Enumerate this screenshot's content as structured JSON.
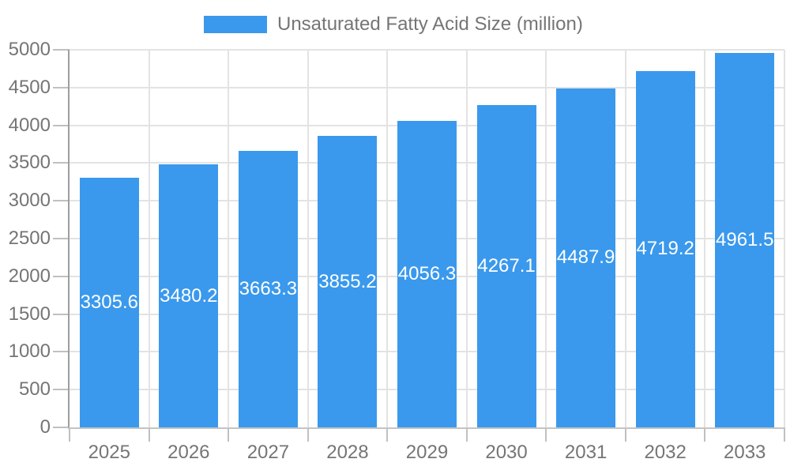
{
  "chart_data": {
    "type": "bar",
    "title": "",
    "legend": "Unsaturated Fatty Acid Size (million)",
    "legend_position": "top-center",
    "categories": [
      "2025",
      "2026",
      "2027",
      "2028",
      "2029",
      "2030",
      "2031",
      "2032",
      "2033"
    ],
    "series": [
      {
        "name": "Unsaturated Fatty Acid Size (million)",
        "values": [
          3305.6,
          3480.2,
          3663.3,
          3855.2,
          4056.3,
          4267.1,
          4487.9,
          4719.2,
          4961.5
        ]
      }
    ],
    "value_labels": [
      "3305.6",
      "3480.2",
      "3663.3",
      "3855.2",
      "4056.3",
      "4267.1",
      "4487.9",
      "4719.2",
      "4961.5"
    ],
    "value_label_position": "inside-center",
    "xlabel": "",
    "ylabel": "",
    "ylim": [
      0,
      5000
    ],
    "y_ticks": [
      0,
      500,
      1000,
      1500,
      2000,
      2500,
      3000,
      3500,
      4000,
      4500,
      5000
    ],
    "grid": true,
    "colors": {
      "bar": "#3A99EC",
      "bar_value_label": "#ffffff",
      "axis_text": "#757575",
      "y_axis_line": "#9e9e9e",
      "x_axis_line": "#c4c4c4",
      "tick": "#c0c0c0",
      "gridline": "#e3e3e3",
      "background": "#ffffff"
    }
  }
}
